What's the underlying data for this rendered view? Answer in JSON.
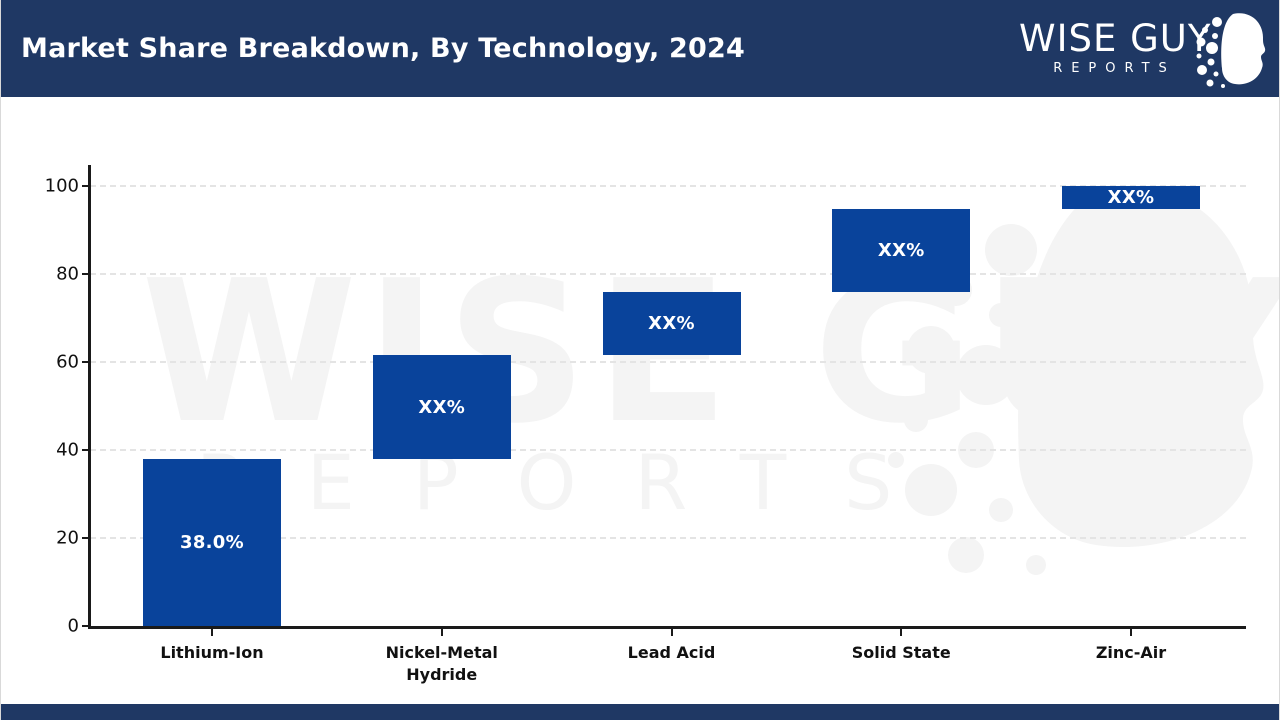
{
  "header": {
    "title": "Market Share Breakdown, By Technology, 2024",
    "logo": {
      "wordmark": "WISE GUY",
      "subtext": "REPORTS"
    }
  },
  "watermark": {
    "wordmark": "WISE GUY",
    "subtext": "REPORTS"
  },
  "chart_data": {
    "type": "bar",
    "subtype": "waterfall",
    "title": "Market Share Breakdown, By Technology, 2024",
    "categories": [
      "Lithium-Ion",
      "Nickel-Metal Hydride",
      "Lead Acid",
      "Solid State",
      "Zinc-Air"
    ],
    "segments": [
      {
        "category": "Lithium-Ion",
        "start": 0,
        "end": 38.0,
        "label": "38.0%"
      },
      {
        "category": "Nickel-Metal Hydride",
        "start": 38.0,
        "end": 61.5,
        "label": "XX%"
      },
      {
        "category": "Lead Acid",
        "start": 61.5,
        "end": 76.0,
        "label": "XX%"
      },
      {
        "category": "Solid State",
        "start": 76.0,
        "end": 94.8,
        "label": "XX%"
      },
      {
        "category": "Zinc-Air",
        "start": 94.8,
        "end": 100.0,
        "label": "XX%"
      }
    ],
    "yticks": [
      0,
      20,
      40,
      60,
      80,
      100
    ],
    "ylim": [
      0,
      105
    ],
    "xlabel": "",
    "ylabel": "",
    "grid": "horizontal-dashed",
    "legend": "none"
  },
  "colors": {
    "header_bg": "#1F3864",
    "footer_bg": "#1F3864",
    "bar": "#09439B",
    "bar_label": "#ffffff",
    "axis": "#1a1a1a",
    "grid": "#e4e4e4",
    "page_bg": "#ffffff",
    "watermark": "#f4f4f4"
  }
}
